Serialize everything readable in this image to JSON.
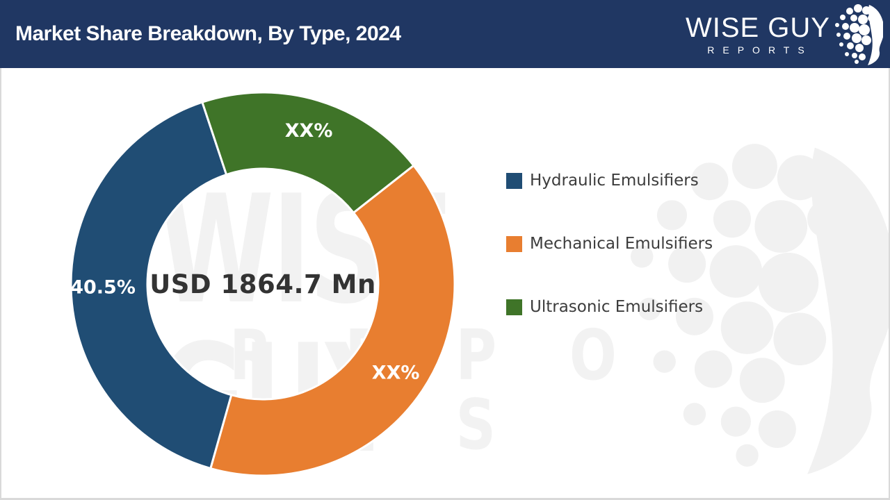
{
  "header": {
    "title": "Market Share Breakdown, By Type, 2024"
  },
  "logo": {
    "line1": "WISE GUY",
    "line2": "REPORTS"
  },
  "watermark": {
    "line1": "WISE GUY",
    "line2": "R E P O R T S"
  },
  "chart_data": {
    "type": "pie",
    "subtype": "donut",
    "title": "Market Share Breakdown, By Type, 2024",
    "center_label": "USD 1864.7 Mn",
    "units": "percent share",
    "start_angle_deg": -18.4,
    "direction": "counterclockwise",
    "inner_radius_ratio": 0.6,
    "legend_position": "right",
    "segments": [
      {
        "name": "Hydraulic Emulsifiers",
        "value": 40.5,
        "label": "40.5%",
        "color": "#204d74",
        "estimated": false
      },
      {
        "name": "Mechanical Emulsifiers",
        "value": 40.0,
        "label": "XX%",
        "color": "#e87e30",
        "estimated": true
      },
      {
        "name": "Ultrasonic Emulsifiers",
        "value": 19.5,
        "label": "XX%",
        "color": "#3f7428",
        "estimated": true
      }
    ],
    "colors": {
      "header_bar": "#203763",
      "center_text": "#333333",
      "legend_text": "#3c3c3c",
      "segment_gap": "#ffffff"
    }
  }
}
